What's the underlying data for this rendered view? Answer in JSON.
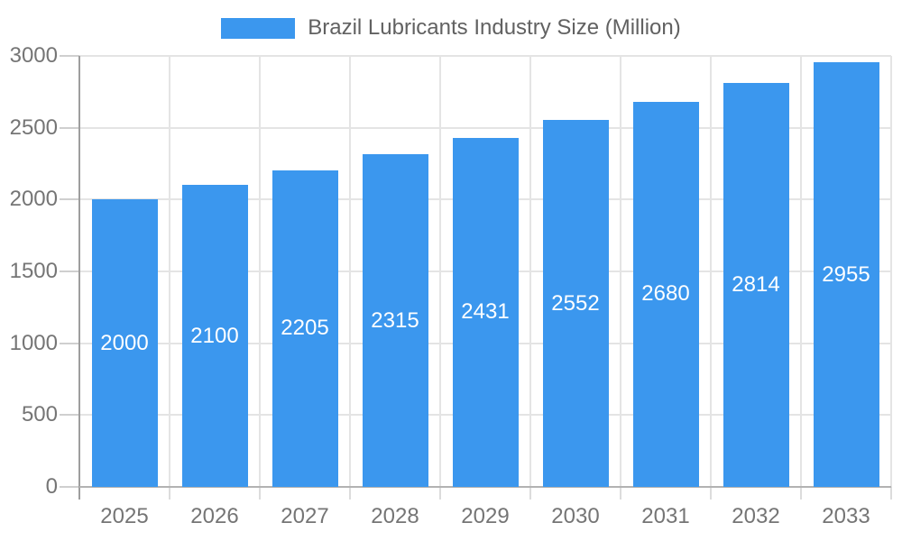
{
  "legend": {
    "swatch_color": "#3b97ee",
    "label": "Brazil Lubricants Industry Size (Million)"
  },
  "chart_data": {
    "type": "bar",
    "title": "Brazil Lubricants Industry Size (Million)",
    "categories": [
      "2025",
      "2026",
      "2027",
      "2028",
      "2029",
      "2030",
      "2031",
      "2032",
      "2033"
    ],
    "series": [
      {
        "name": "Brazil Lubricants Industry Size (Million)",
        "values": [
          2000,
          2100,
          2205,
          2315,
          2431,
          2552,
          2680,
          2814,
          2955
        ]
      }
    ],
    "value_labels": [
      "2000",
      "2100",
      "2205",
      "2315",
      "2431",
      "2552",
      "2680",
      "2814",
      "2955"
    ],
    "xlabel": "",
    "ylabel": "",
    "ylim": [
      0,
      3000
    ],
    "ytick_step": 500,
    "ytick_labels": [
      "0",
      "500",
      "1000",
      "1500",
      "2000",
      "2500",
      "3000"
    ],
    "grid": true,
    "legend_position": "top",
    "bar_color": "#3b97ee",
    "value_label_color": "#ffffff",
    "axis_label_color": "#757575",
    "gridline_color": "#e4e4e4"
  }
}
